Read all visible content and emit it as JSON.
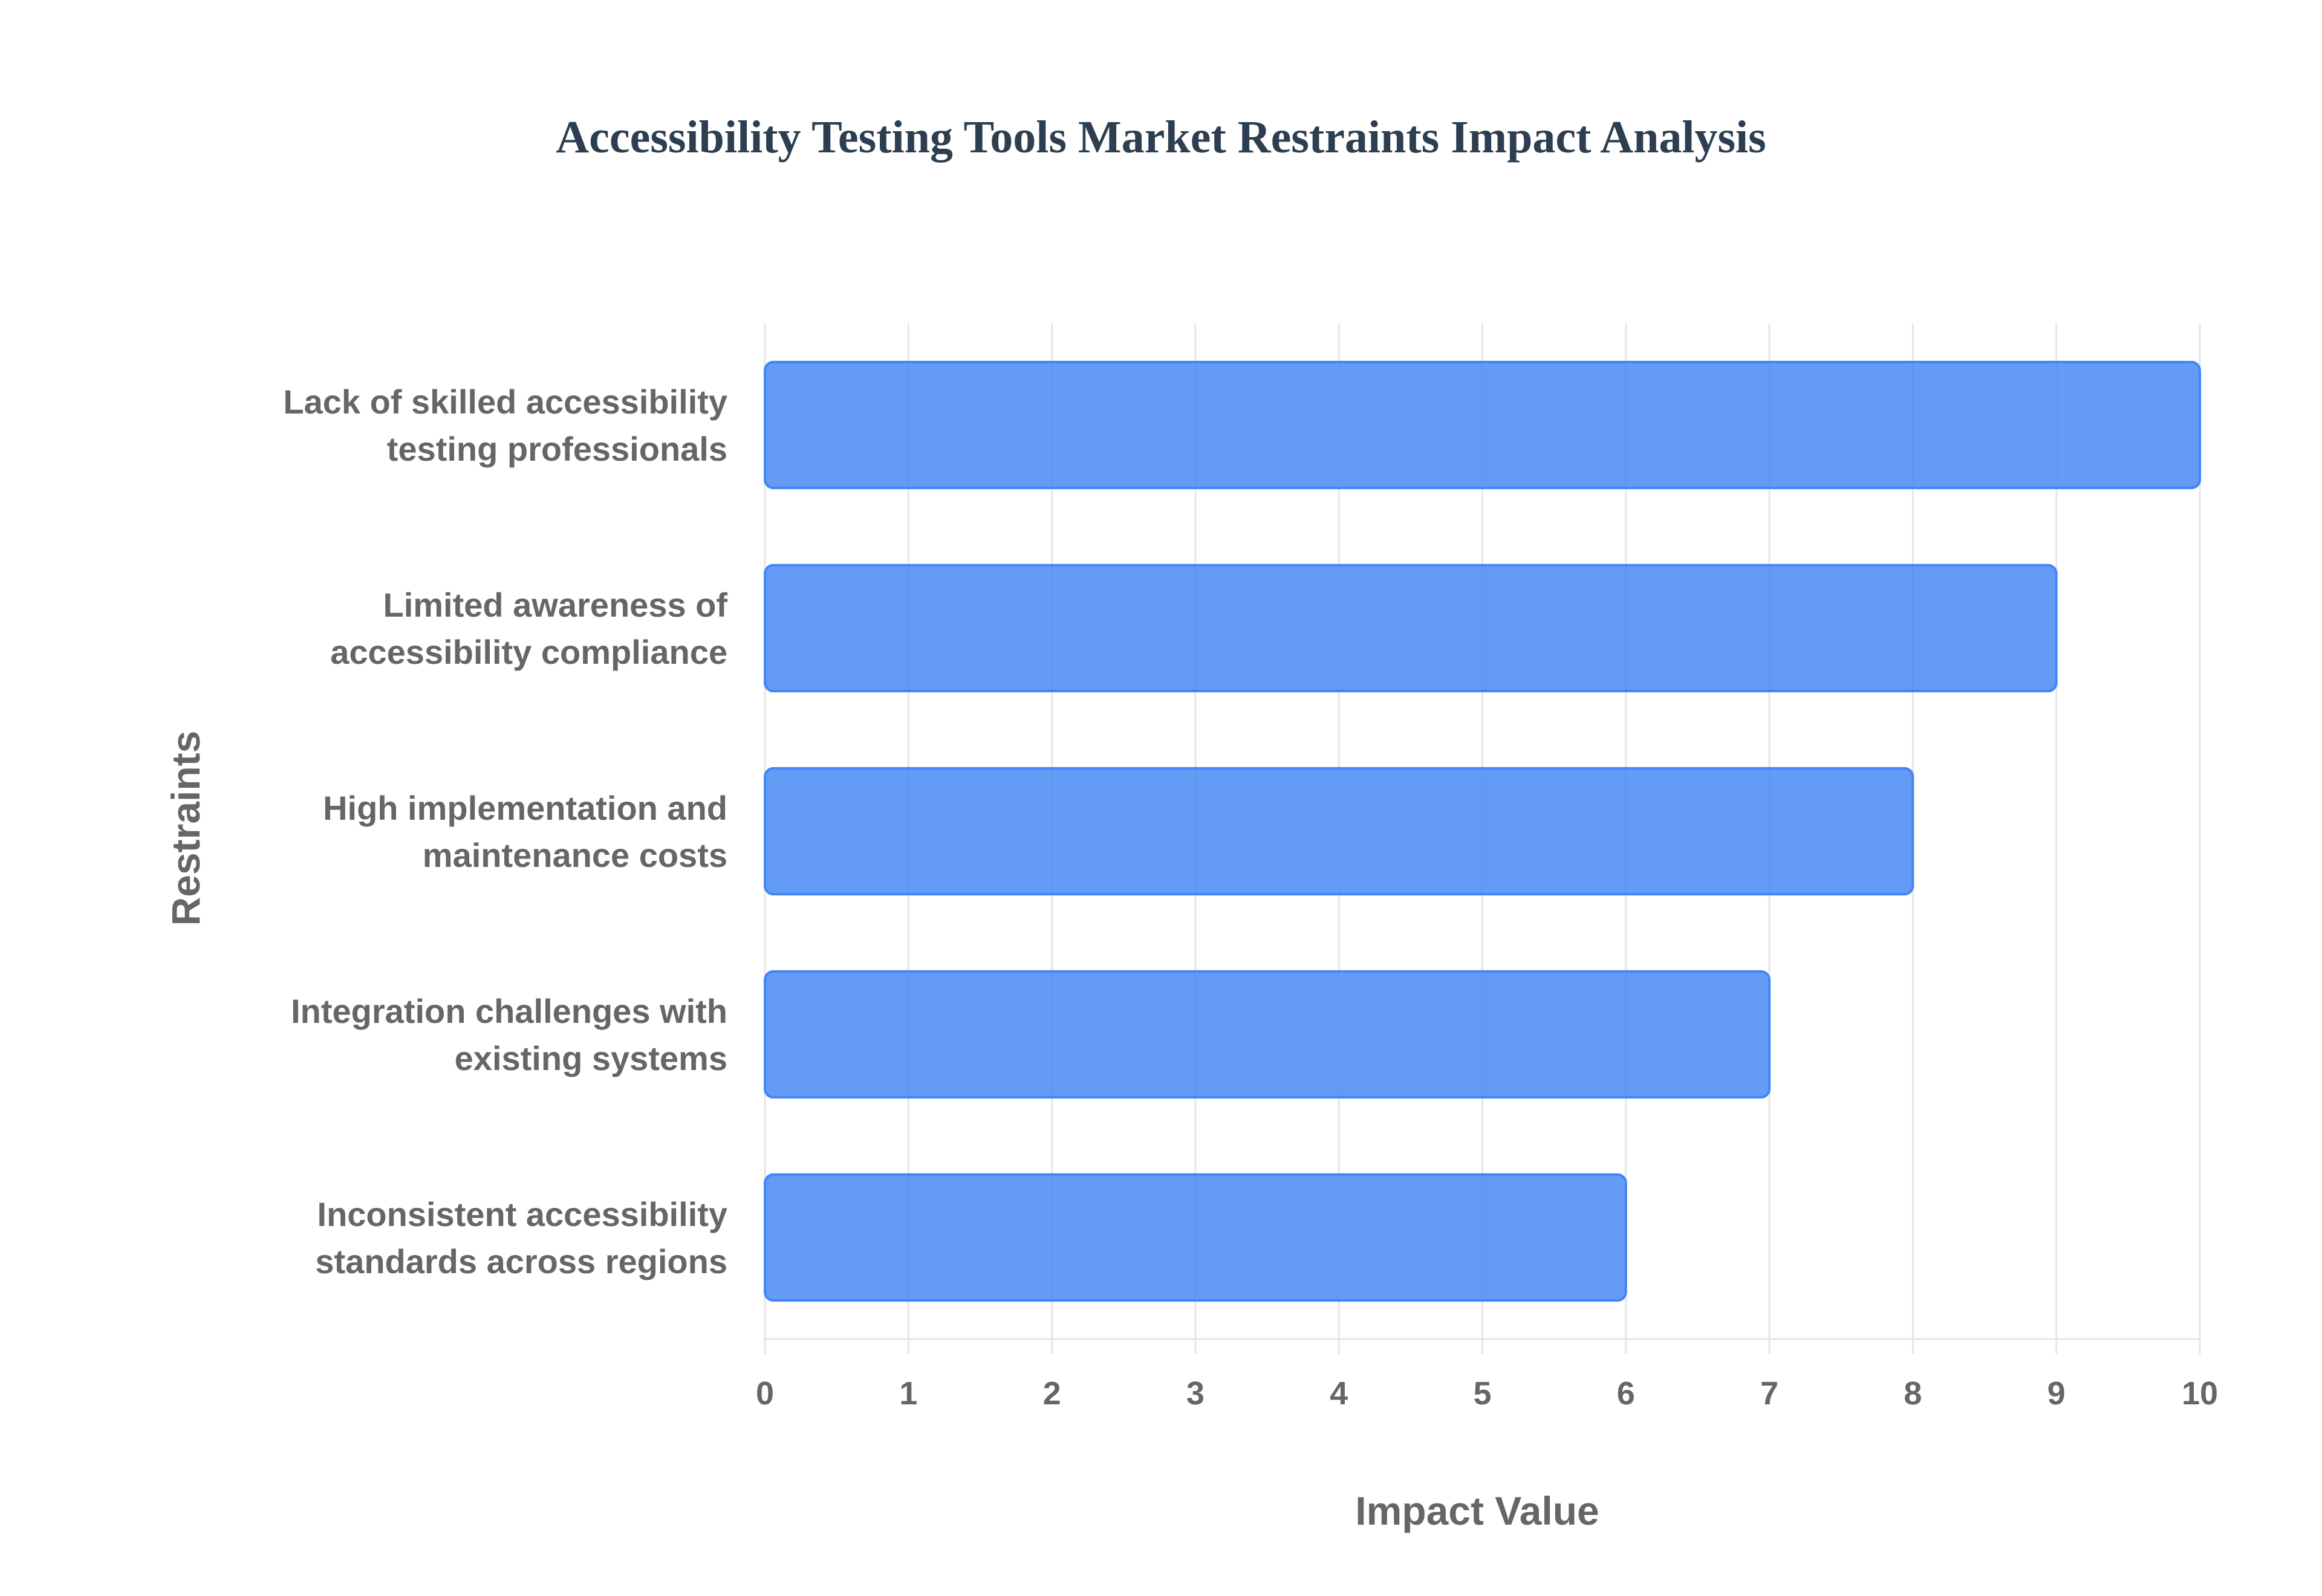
{
  "chart_data": {
    "type": "bar",
    "orientation": "horizontal",
    "title": "Accessibility Testing Tools Market Restraints Impact Analysis",
    "xlabel": "Impact Value",
    "ylabel": "Restraints",
    "xlim": [
      0,
      10
    ],
    "x_ticks": [
      "0",
      "1",
      "2",
      "3",
      "4",
      "5",
      "6",
      "7",
      "8",
      "9",
      "10"
    ],
    "grid": true,
    "legend": "none",
    "bar_color": "#4285f4",
    "categories": [
      [
        "Lack of skilled accessibility",
        "testing professionals"
      ],
      [
        "Limited awareness of",
        "accessibility compliance"
      ],
      [
        "High implementation and",
        "maintenance costs"
      ],
      [
        "Integration challenges with",
        "existing systems"
      ],
      [
        "Inconsistent accessibility",
        "standards across regions"
      ]
    ],
    "values": [
      10,
      9,
      8,
      7,
      6
    ]
  }
}
